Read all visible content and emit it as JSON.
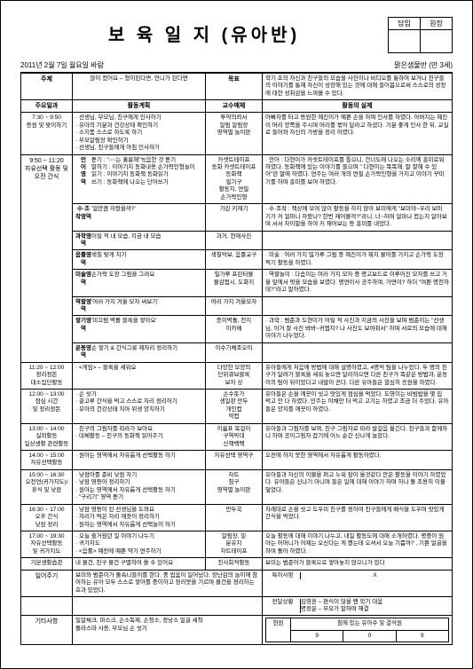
{
  "title": "보 육 일 지 (유아반)",
  "sig": {
    "left": "담임",
    "right": "원장"
  },
  "date_left": "2011년 2월 7일 월요일 바람",
  "date_right": "맑은샘물반 (만 3세)",
  "topic_label": "주제",
  "topic_text": "많이 컸어요 – 형이된다면, 언니가 된다면",
  "goal_label": "목표",
  "goal_text": "학기 초의 자신과 친구들의 모습을 사진이나 비디오를 통하여 보거나 친구들의 이야기를 통해 자신이 성장해 있는 것에 대해 들어봄으로써 스스로의 성장에 대한 성취감을 느껴볼 수 있다.",
  "col1": "주요일과",
  "col2": "활동계획",
  "col3": "교수매체",
  "col4": "활동의 실제",
  "rows": [
    {
      "time": "7:30 ~ 9:50\n등원 및 맞이하기",
      "plan": "· 선생님, 부모님, 친구에게 인사하기\n· 유아의 기분과 건강상태 확인하기\n· 소지품 스스로 하도록 하기\n· 부모알림장 확인하기\n· 선생님, 친구들에게 아침 인사하기",
      "media": "투약의뢰서\n알림 알림장\n영역별 놀이판",
      "note": "아빠차를 타고 등원한 혜진이가 예쁜 손을 하며 인사를 하였다. 아버지는 혜진이 머리 양쪽을 주시며 머리를 묶어 달라고 하셨다. 기분 좋게 인사 한 뒤, 교실로 들어와 자신의 가방을 정리 하였다."
    },
    {
      "time": "9:50 ~ 11:20\n자유선택 활동 및\n오전 간식",
      "plan": "",
      "media": "",
      "note": "",
      "sub": [
        {
          "area": "언\n어\n영\n역",
          "plan": "듣기 : \"○○는 훌륭해\"녹음한 것 듣기\n말하기 : 이야기치 동화내용 손가락인형놀이\n읽기 : 이야기치 동화책 동화읽기\n쓰기 : 동화책에 나오는 단어쓰기",
          "media": "카셋트테이프\n동화 카셋트테이프\n동화책\n필기구\n활동지, 연필\n손가락인형",
          "note": "· 언어 : 다현이가 카셋트테이프를 틀으니, 건너도에 나오는 소리에 흥미로워 하였다. 동화책에 있는 이야기를 들으며 \" 다현이는 똑똑해. 말 잘해 수 있어\"란 말에 하였다. 연주는 여러 개의 연필 손가락인형을 가지고 이야기 꾸미기를 하며 흥미를 보여 하였다."
        },
        {
          "area": "수·조작영역",
          "plan": "'얼만큼 자랐을까?'",
          "media": "기린 키재기",
          "note": "· 수·조작 : 책상에 모여 많이 활동을 하지 않아 보미에게 \"보미야~우리 보미 기가 커 얼마니 자랐나? 한번 재어볼까?\"라니, 너~하며 얼마나 컸는지 알아보며 서서 차이말을 하여 키 재어보는 등 흥미를 내었다."
        },
        {
          "area": "과학영역",
          "plan": "어릴 적 내 모습, 지금 내 모습",
          "media": "과거, 현재사진",
          "note": ""
        },
        {
          "area": "음률영역",
          "plan": "색칠 맞게 치기",
          "media": "색칠악보, 음률교구",
          "note": "· 미술 : 여러 가지 밀가루 그림 중 혜진이가 뭐지 물어를 가지고 손가락 도장 찍기 활동을 하였다."
        },
        {
          "area": "미술영역",
          "plan": "손가락 도장 그림을 그려요",
          "media": "밀가루 프린터물\n물감접시, 도화지",
          "note": "· 역할놀이 : 다솜이는 여러 가지 모자 중 명고보드로 이루어진 모자를 쓰고 거울 앞에서 멋을 모습을 보였다. 명연이사 공주하며, 가면이? 하더 \"여쁜 명천하데?\"라고 말하였다."
        },
        {
          "area": "역할영역",
          "plan": "'여러 가지 겨울 모자 써보기'",
          "media": "여러 가지 겨울모자",
          "note": ""
        },
        {
          "area": "쌓기영역",
          "plan": "'미끄럼 벽돌 블록을 쌓아요'",
          "media": "종이벽돌, 천지\n이카메",
          "note": "· 과학 : 범준과 도현이가 어릴 적 사진과 지금의 사진을 보며 범준이는 \"선생님, 이거 잘 사진 봐봐~귀엽지? 나 사진도 보여줘서\" 하며 서로의 모습에 대해 이야기 나누었다."
        },
        {
          "area": "운동영역",
          "plan": "손 쌓기 & 간식그릇 제자리 정리하기",
          "media": "이수기체조오이",
          "note": ""
        }
      ]
    },
    {
      "time": "11:20 ~ 12:00\n정리정돈\n대소집단활동",
      "plan": "· <게임> – 블록을 세워요",
      "media": "다양한 모양의\n단위큐브블록\n보자 상",
      "note": "유아들에게 처음에 방법에 대해 설명하였고, 4명씩 팀을 나누었다. 두 명의 친구가 달려가 블록을 세워 놓으면 달리하으면 다른 친구가 똑같은 방법과, 운동이의 팀이 뒤이었다고 내발이 끈다. 다른 유아들은 열심히 응원을 하였다."
    },
    {
      "time": "12:00 ~ 13:00\n점심 시간\n및 정리정돈",
      "plan": "· 손 씻기\n· 골고루 간식을 먹고 스스로 자리 정리하기\n· 유아의 건강상태 치아 위생 양치하기",
      "media": "손수돗가\n생일판 만두\n개인컵\n약컵",
      "note": "유아들은 손을 깨끗이 씻고 맛있게 점심을 먹었다. 도영이는 비빔밥을 몇 입 먹고 안 다 하였다. 민주는 야채만 더 먹고 고기는 하였고 조금 더 주었다. 유아들은 양치를 깨끗이 하였다."
    },
    {
      "time": "13:00 ~ 14:00\n실외활동\n일상생활 관련활동",
      "plan": "· 친구의 그림자를 따라가 보아요\n· 대체활동 – 친구의 동화책 읽어주기",
      "media": "이름표 목걸이\n구역막대\n산책백팩",
      "note": "유아들과 그림자를 보며, 친구 그림자로 따라 발걸음 옮긴다. 친구들과 함께하니 하며 공이그림자 잡기에 어느 순간 신나게 놀았다."
    },
    {
      "time": "14:00 ~ 15:00\n자유선택활동",
      "plan": "· 원아는 영역에서 자유롭게 선택활동 하기",
      "media": "자유선택 영역구",
      "note": "오전에 하지 못한 영역에서 자유롭게 활동하였다."
    },
    {
      "time": "15:00 ~ 16:30\n오전연(귀가지도)/\n휴식 및 낮잠",
      "plan": "· 낮잠아를 준비 낮잠 자기\n· 낮잠 영등아 정리하기\n· 원아는 영역에서 자유롭게 선택활동 하기\n· \"구리기\" 영역 듣기",
      "media": "차트\n침구\n영역별 놀이판",
      "note": "유아들과 자신의 이불을 펴고 누워 잠이 올것같다 안은 활동을 이야기 하였었다. 유아들은 신나기 아니며 들은 일에 대해 이야기 하며 하나 둘 조용히 이불 덮었다."
    },
    {
      "time": "16:30 ~ 17:00\n오후 간식\n낮잠 정리",
      "plan": "· 낮잠 영등이 된 선생님을 도와요\n· 자리가 먹은 자리 깨끗이 정리하기\n· 원하는 영역에서 자유롭게 선택놀이 하기",
      "media": "만두국",
      "note": "차례대로 손을 씻고 도우미 친구를 정하여 친구들에게 배식을 도우며 맛있게 간식을 먹었다."
    },
    {
      "time": "17:00 ~ 19:30\n자유선택활동\n및 귀가지도",
      "plan": "· 오늘 즐거웠던 일 이야기 나누기\n· 귀가지도\n· <음률> 예전에 예쁜 약기 연주하기",
      "media": "알림장, 밑\n분유지\n차트테이프",
      "note": "오늘 활동에 대해 이야기 나누고, 내일 활동도에 대해 소개하였다. 명중이 원아는 어머니가 어제는 오신다는 게 했는데 오셔서 오늘 기쁨까? , 기쁜 얼굴을 하며 돌아 하였다."
    },
    {
      "time": "기본생활습관",
      "plan": "내 물건, 친구 물건 구별하여 쓸 수 있어요",
      "media": "친사회적활동",
      "note": "보미는 범준이가 블록으로 쌓아놓지 않으니가 있다"
    }
  ],
  "read_label": "일어주기",
  "read_text": "보미와 범준이가 둘속니들이를 한다. 중 씹움이 일어났다. 장난감의 놀이에 참여하는 유아 모두 스스로 쌓아를 중이하고 정리못을 기르며 물건을 정리하는 효과 있었다.",
  "safe_label": "특이사항",
  "safe_text": "X",
  "eval_label": "전달상황",
  "eval_text": "김영흔 – 편식이 많을 땐 학기 대움\n명정운 – 부모가 말하며 해결",
  "etc_label": "기타사항",
  "etc_text": "밀알체크, 마스크, 손소독제, 손청소, 정낭소 얼굴 세척\n플라스마 사용, 부모님 손 씻기",
  "cnt_label": "현원",
  "cnt_sub": "침에 있는 유아수 및 결석원",
  "nums": [
    "9",
    "0",
    "9"
  ]
}
